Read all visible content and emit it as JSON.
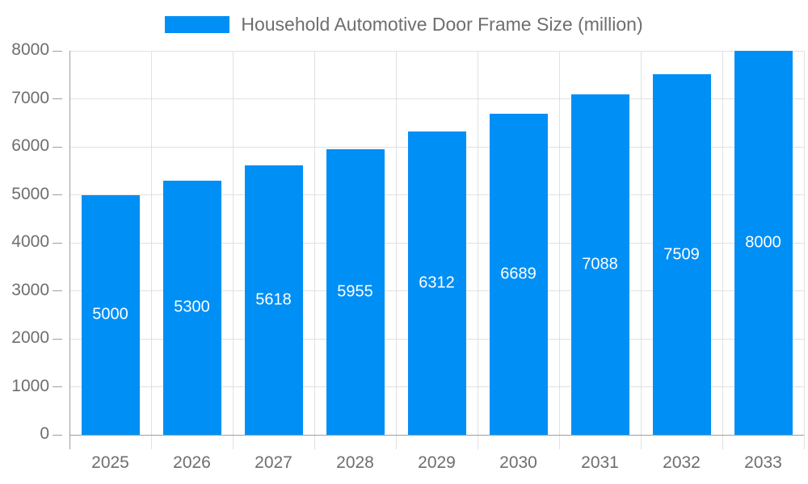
{
  "chart_data": {
    "type": "bar",
    "title": "Household Automotive Door Frame Size (million)",
    "categories": [
      "2025",
      "2026",
      "2027",
      "2028",
      "2029",
      "2030",
      "2031",
      "2032",
      "2033"
    ],
    "values": [
      5000,
      5300,
      5618,
      5955,
      6312,
      6689,
      7088,
      7509,
      8000
    ],
    "xlabel": "",
    "ylabel": "",
    "ylim": [
      0,
      8000
    ],
    "yticks": [
      0,
      1000,
      2000,
      3000,
      4000,
      5000,
      6000,
      7000,
      8000
    ],
    "grid": true,
    "legend_position": "top",
    "colors": {
      "bar": "#008FF5",
      "value_label": "#FFFFFF",
      "axis_text": "#6E6E6E",
      "grid_line": "#E1E1E1",
      "axis_line": "#9E9E9E"
    }
  }
}
